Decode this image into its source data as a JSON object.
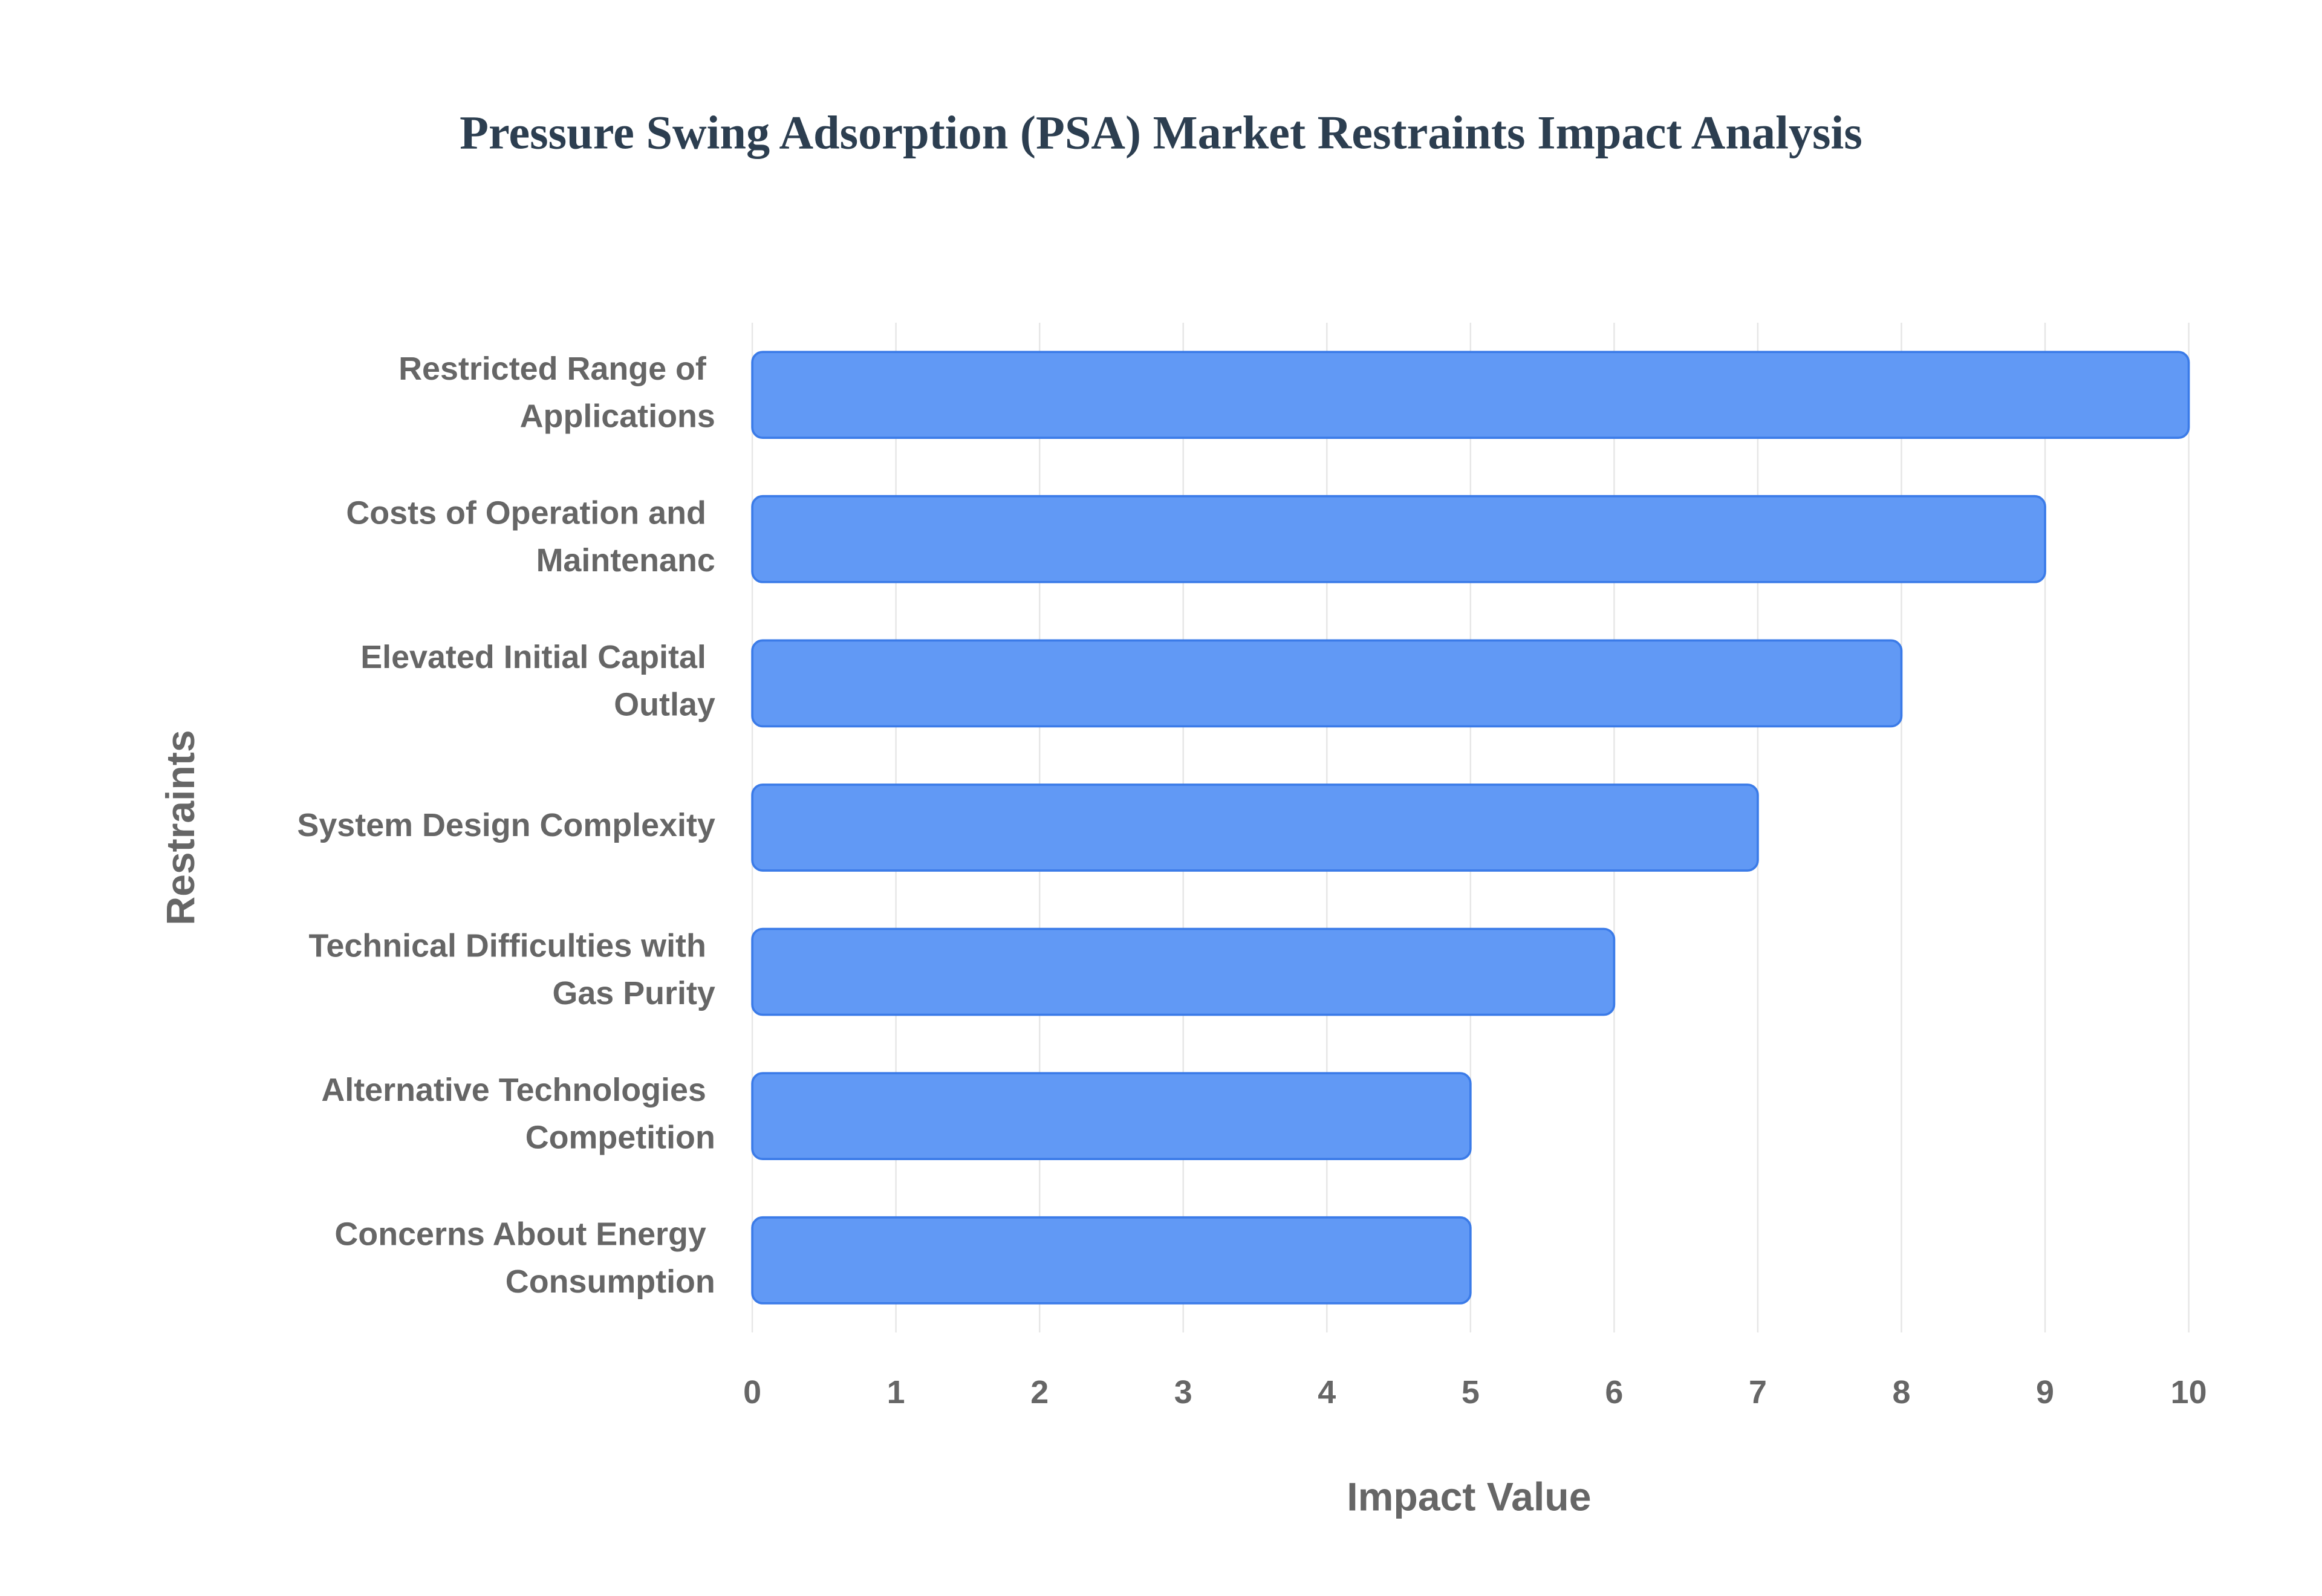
{
  "chart_data": {
    "type": "barh",
    "title": "Pressure Swing Adsorption (PSA) Market Restraints Impact Analysis",
    "x_label": "Impact Value",
    "y_label": "Restraints",
    "categories": [
      "Restricted Range of Applications",
      "Costs of Operation and Maintenanc",
      "Elevated Initial Capital Outlay",
      "System Design Complexity",
      "Technical Difficulties with Gas Purity",
      "Alternative Technologies Competition",
      "Concerns About Energy Consumption"
    ],
    "values": [
      10,
      9,
      8,
      7,
      6,
      5,
      5
    ],
    "color": "#6199f5",
    "xlim": [
      0,
      10
    ],
    "xticks": [
      0,
      1,
      2,
      3,
      4,
      5,
      6,
      7,
      8,
      9,
      10
    ],
    "grid": true
  }
}
